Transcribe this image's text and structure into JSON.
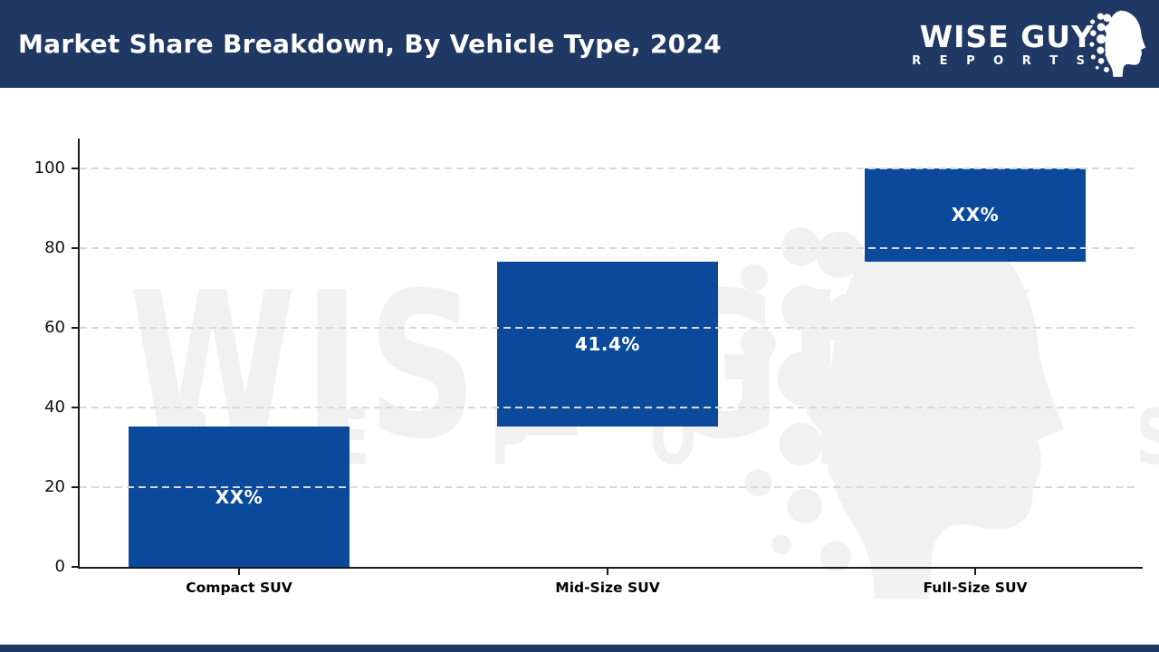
{
  "header": {
    "title": "Market Share Breakdown, By Vehicle Type, 2024",
    "logo": {
      "line1": "WISE GUY",
      "line2": "R E P O R T S"
    }
  },
  "watermark": {
    "line1": "WISE GUY",
    "line2": "R E P O R T S"
  },
  "colors": {
    "header_bg": "#1f3864",
    "bar": "#0b4a9a",
    "grid": "#d9d9d9",
    "axis": "#1a1a1a",
    "bar_label": "#ffffff",
    "watermark": "#f1f1f1"
  },
  "chart_data": {
    "type": "bar",
    "subtype": "waterfall-floating-bars",
    "title": "Market Share Breakdown, By Vehicle Type, 2024",
    "categories": [
      "Compact SUV",
      "Mid-Size SUV",
      "Full-Size SUV"
    ],
    "segments": [
      {
        "category": "Compact SUV",
        "start": 0,
        "end": 35.2,
        "label": "XX%"
      },
      {
        "category": "Mid-Size SUV",
        "start": 35.2,
        "end": 76.6,
        "label": "41.4%"
      },
      {
        "category": "Full-Size SUV",
        "start": 76.6,
        "end": 100,
        "label": "XX%"
      }
    ],
    "xlabel": "",
    "ylabel": "",
    "yticks": [
      0,
      20,
      40,
      60,
      80,
      100
    ],
    "ylim": [
      0,
      107.5
    ],
    "grid": "dashed-horizontal",
    "legend": "none"
  }
}
